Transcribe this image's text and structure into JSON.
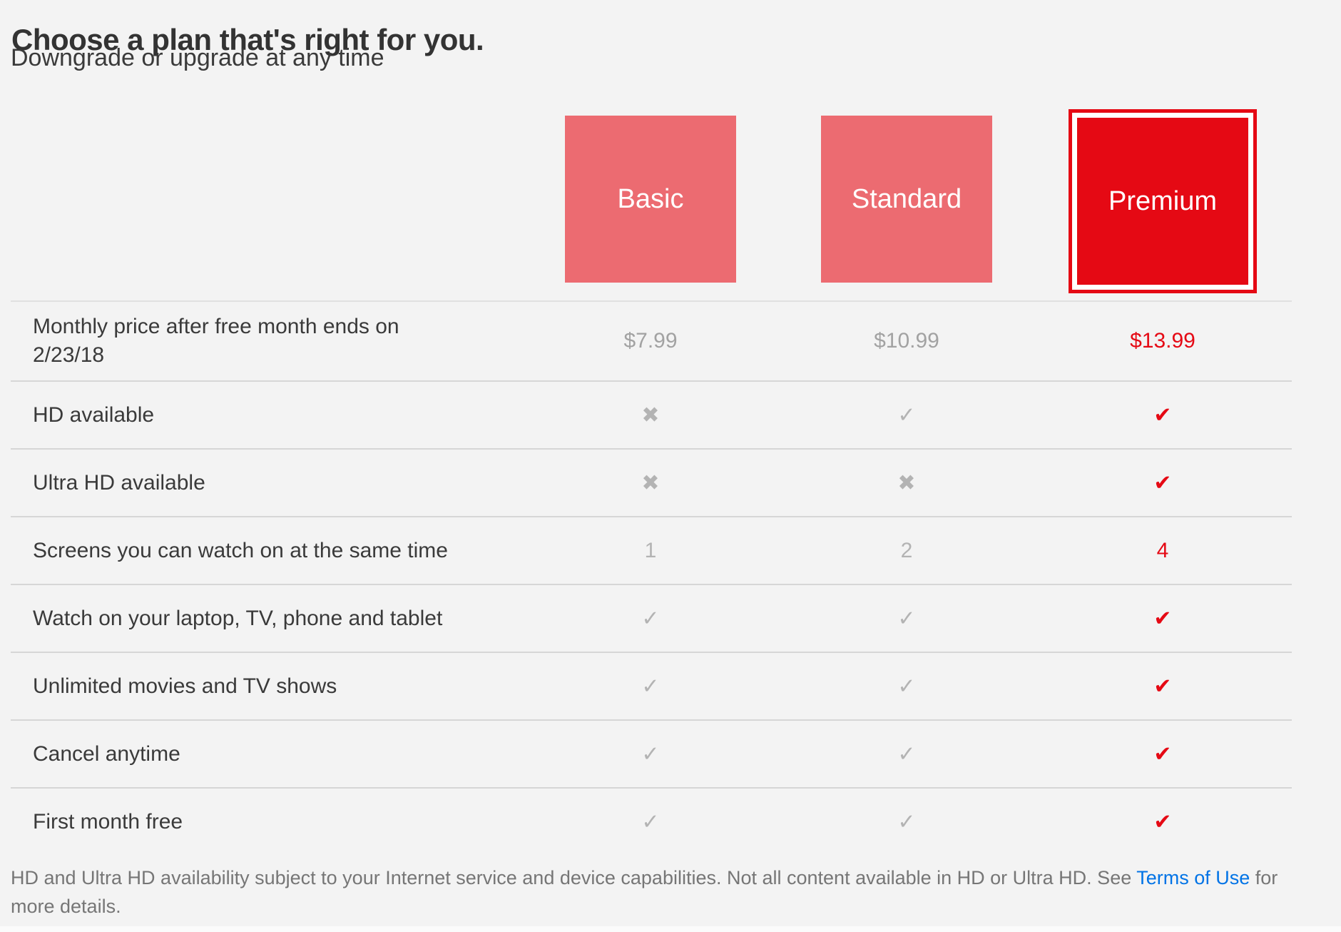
{
  "header": {
    "title": "Choose a plan that's right for you.",
    "subtitle": "Downgrade or upgrade at any time"
  },
  "plans": [
    {
      "name": "Basic",
      "selected": false
    },
    {
      "name": "Standard",
      "selected": false
    },
    {
      "name": "Premium",
      "selected": true
    }
  ],
  "table": {
    "columns": [
      "Basic",
      "Standard",
      "Premium"
    ],
    "rows": [
      {
        "label": "Monthly price after free month ends on\n2/23/18",
        "values": [
          "$7.99",
          "$10.99",
          "$13.99"
        ]
      },
      {
        "label": "HD available",
        "values": [
          "✖",
          "✓",
          "✔"
        ]
      },
      {
        "label": "Ultra HD available",
        "values": [
          "✖",
          "✖",
          "✔"
        ]
      },
      {
        "label": "Screens you can watch on at the same time",
        "values": [
          "1",
          "2",
          "4"
        ]
      },
      {
        "label": "Watch on your laptop, TV, phone and tablet",
        "values": [
          "✓",
          "✓",
          "✔"
        ]
      },
      {
        "label": "Unlimited movies and TV shows",
        "values": [
          "✓",
          "✓",
          "✔"
        ]
      },
      {
        "label": "Cancel anytime",
        "values": [
          "✓",
          "✓",
          "✔"
        ]
      },
      {
        "label": "First month free",
        "values": [
          "✓",
          "✓",
          "✔"
        ]
      }
    ]
  },
  "footer": {
    "text_before": "HD and Ultra HD availability subject to your Internet service and device capabilities. Not all content available in HD or Ultra HD. See ",
    "link_label": "Terms of Use",
    "text_after": " for more details."
  },
  "colors": {
    "accent_red": "#e50914",
    "unselected_plan": "#ec6b71",
    "muted_value": "#b3b3b3",
    "price_gray": "#a2a2a2",
    "link_blue": "#0073e6"
  }
}
